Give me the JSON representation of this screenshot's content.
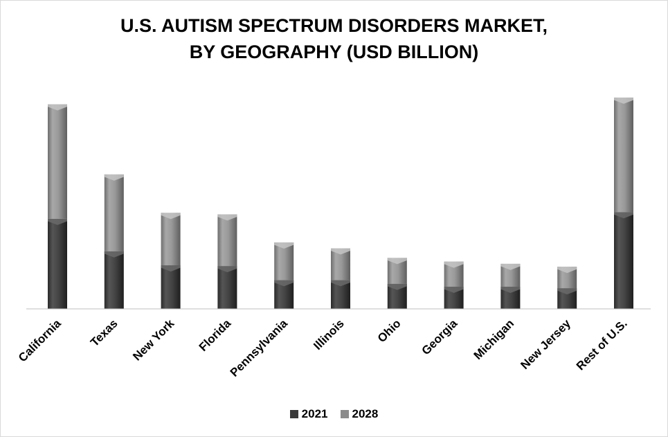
{
  "chart_data": {
    "type": "bar",
    "stacked": true,
    "title": "U.S. AUTISM SPECTRUM DISORDERS MARKET,",
    "subtitle": "BY GEOGRAPHY (USD BILLION)",
    "categories": [
      "California",
      "Texas",
      "New York",
      "Florida",
      "Pennsylvania",
      "Illinois",
      "Ohio",
      "Georgia",
      "Michigan",
      "New Jersey",
      "Rest of U.S."
    ],
    "series": [
      {
        "name": "2021",
        "color": "#3a3a3a",
        "values": [
          12.2,
          7.8,
          5.9,
          5.8,
          3.9,
          3.9,
          3.4,
          3.0,
          3.0,
          2.8,
          13.1
        ]
      },
      {
        "name": "2028",
        "color": "#8c8c8c",
        "values": [
          15.5,
          10.4,
          7.1,
          7.0,
          5.1,
          4.3,
          3.5,
          3.4,
          3.1,
          2.9,
          15.5
        ]
      }
    ],
    "ylim": [
      0,
      30
    ],
    "grid": false,
    "legend_position": "bottom"
  }
}
